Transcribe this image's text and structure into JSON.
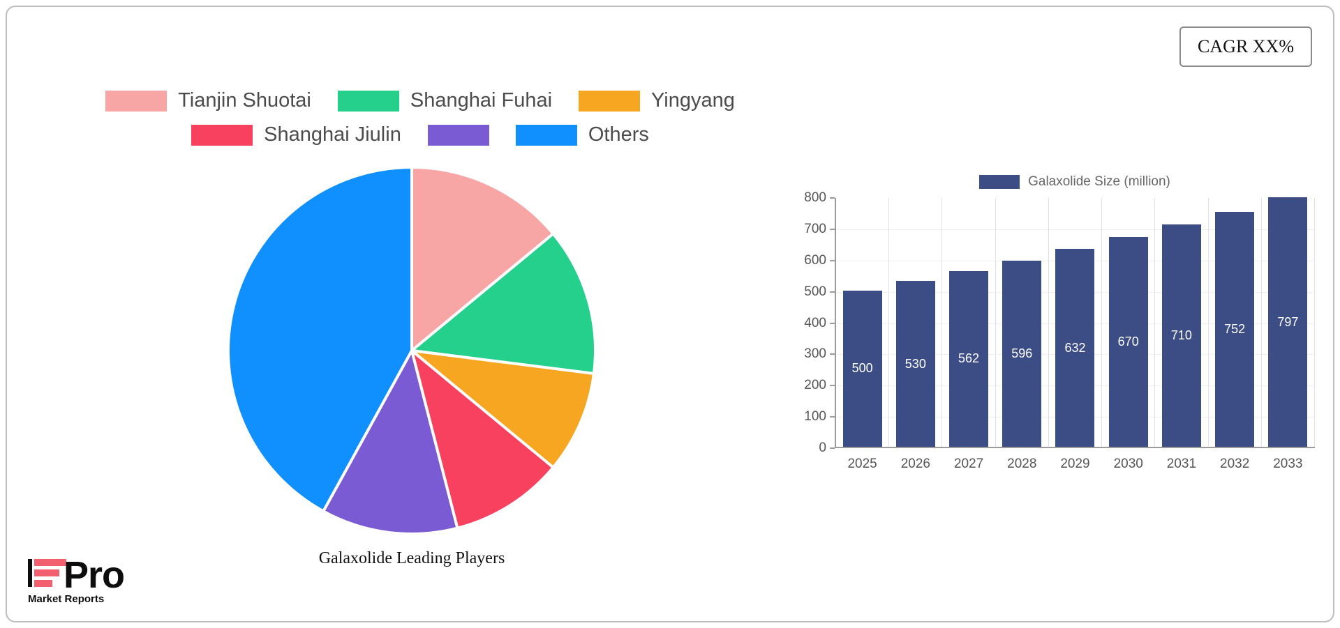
{
  "card": {
    "cagr_label": "CAGR XX%"
  },
  "logo": {
    "name": "Pro",
    "subtitle": "Market Reports"
  },
  "chart_data": [
    {
      "type": "pie",
      "title": "Galaxolide Leading Players",
      "legend_position": "top",
      "start_angle": "top",
      "direction": "clockwise",
      "unit": "%",
      "slices": [
        {
          "label": "Tianjin Shuotai",
          "value": 14,
          "color": "#F8A5A5"
        },
        {
          "label": "Shanghai Fuhai",
          "value": 13,
          "color": "#25D08C"
        },
        {
          "label": "Yingyang",
          "value": 9,
          "color": "#F7A622"
        },
        {
          "label": "Shanghai Jiulin",
          "value": 10,
          "color": "#F8415F"
        },
        {
          "label": "",
          "value": 12,
          "color": "#7A5BD3"
        },
        {
          "label": "Others",
          "value": 42,
          "color": "#1090FF"
        }
      ]
    },
    {
      "type": "bar",
      "series_name": "Galaxolide Size (million)",
      "categories": [
        "2025",
        "2026",
        "2027",
        "2028",
        "2029",
        "2030",
        "2031",
        "2032",
        "2033"
      ],
      "values": [
        500,
        530,
        562,
        596,
        632,
        670,
        710,
        752,
        797
      ],
      "bar_color": "#3C4D85",
      "ylim": [
        0,
        800
      ],
      "ytick_step": 100,
      "grid": "vertical",
      "legend_position": "top",
      "value_labels": "inside-white"
    }
  ]
}
